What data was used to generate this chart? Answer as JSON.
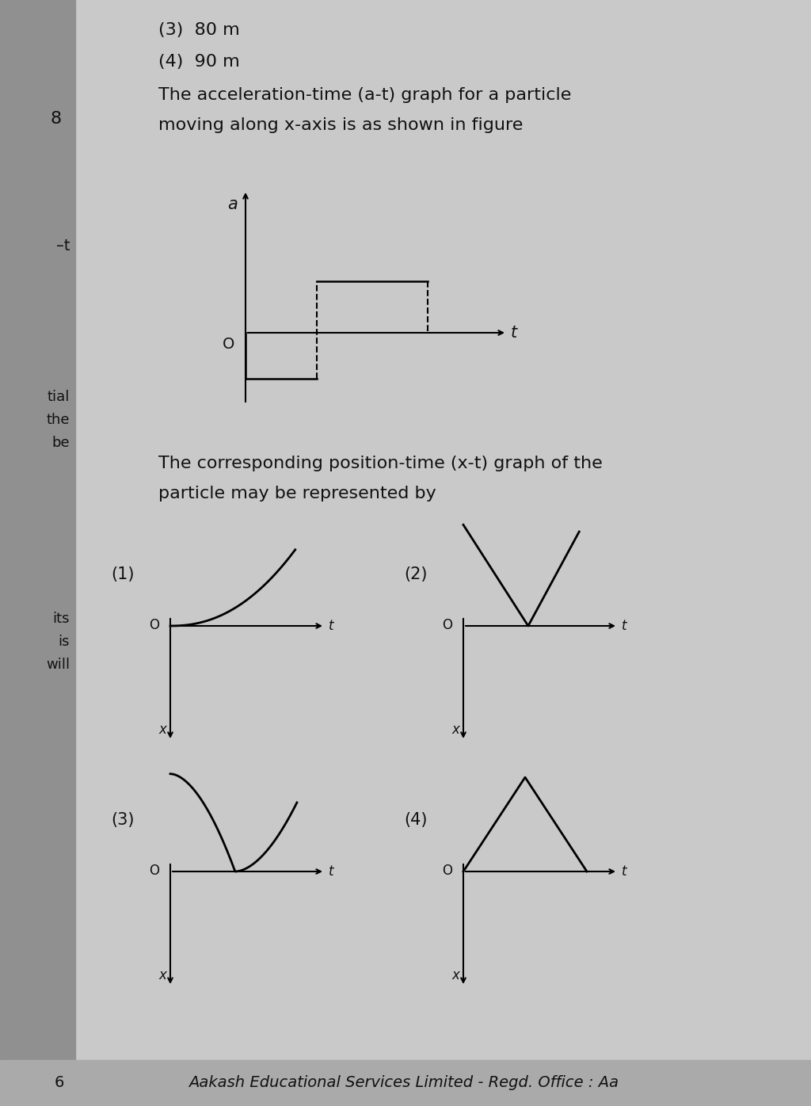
{
  "bg_color": "#c9c9c9",
  "text_color": "#111111",
  "line1": "(3)  80 m",
  "line2": "(4)  90 m",
  "line3": "The acceleration-time (a-t) graph for a particle",
  "line4": "moving along x-axis is as shown in figure",
  "subtitle1": "The corresponding position-time (x-t) graph of the",
  "subtitle2": "particle may be represented by",
  "footer": "Aakash Educational Services Limited - Regd. Office : Aa",
  "left_strip_color": "#909090",
  "footer_color": "#aaaaaa"
}
